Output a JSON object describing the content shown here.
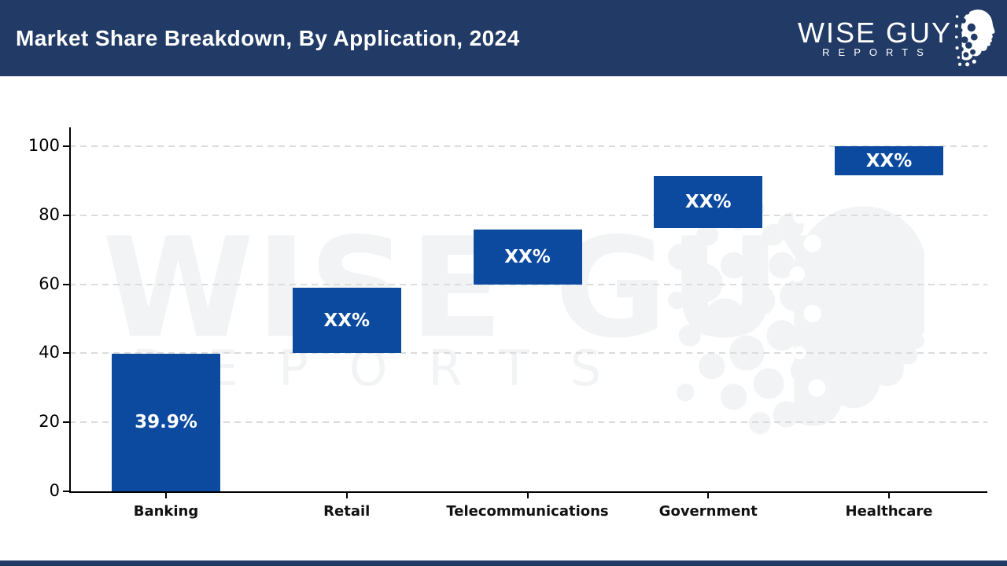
{
  "header": {
    "title": "Market Share Breakdown, By Application, 2024",
    "logo": {
      "line1": "WISE GUY",
      "line2": "REPORTS"
    }
  },
  "watermark": {
    "line1": "WISE GUY",
    "line2": "REPORTS"
  },
  "colors": {
    "header_bg": "#213a66",
    "bar_blue": "#0b4a9e",
    "grid_gray": "#dcdcdc",
    "watermark_gray": "#f2f3f5",
    "bar_label_white": "#ffffff"
  },
  "chart_data": {
    "type": "bar",
    "subtype": "waterfall",
    "title": "Market Share Breakdown, By Application, 2024",
    "xlabel": "",
    "ylabel": "",
    "categories": [
      "Banking",
      "Retail",
      "Telecommunications",
      "Government",
      "Healthcare"
    ],
    "segments": [
      {
        "category": "Banking",
        "start": 0,
        "end": 39.9,
        "label": "39.9%"
      },
      {
        "category": "Retail",
        "start": 40,
        "end": 59,
        "label": "XX%"
      },
      {
        "category": "Telecommunications",
        "start": 60,
        "end": 75.8,
        "label": "XX%"
      },
      {
        "category": "Government",
        "start": 76.3,
        "end": 91.3,
        "label": "XX%"
      },
      {
        "category": "Healthcare",
        "start": 91.5,
        "end": 100,
        "label": "XX%"
      }
    ],
    "yticks": [
      0,
      20,
      40,
      60,
      80,
      100
    ],
    "ylim": [
      0,
      105
    ],
    "grid": "horizontal-dashed",
    "legend": "none"
  }
}
